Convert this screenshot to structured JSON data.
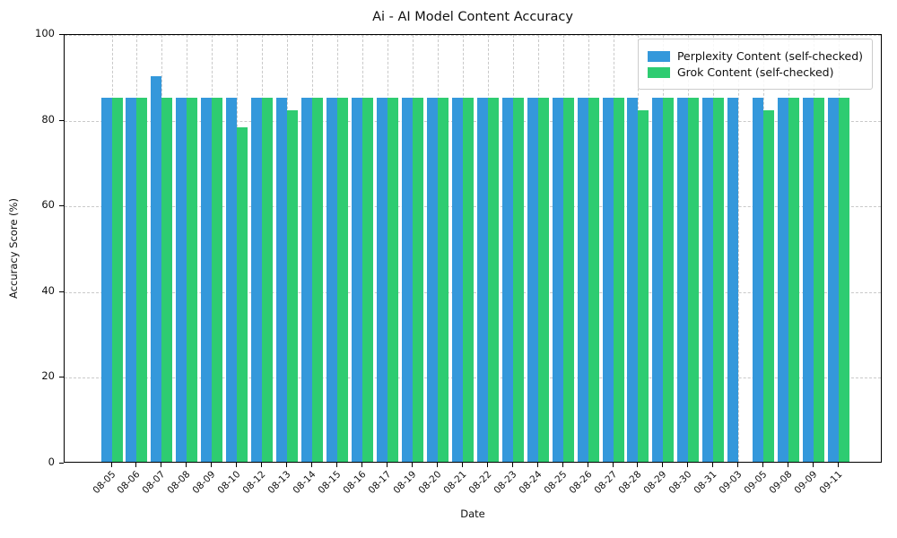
{
  "chart_data": {
    "type": "bar",
    "title": "Ai - AI Model Content Accuracy",
    "xlabel": "Date",
    "ylabel": "Accuracy Score (%)",
    "ylim": [
      0,
      100
    ],
    "yticks": [
      0,
      20,
      40,
      60,
      80,
      100
    ],
    "grid": true,
    "legend_position": "upper right",
    "categories": [
      "08-05",
      "08-06",
      "08-07",
      "08-08",
      "08-09",
      "08-10",
      "08-12",
      "08-13",
      "08-14",
      "08-15",
      "08-16",
      "08-17",
      "08-19",
      "08-20",
      "08-21",
      "08-22",
      "08-23",
      "08-24",
      "08-25",
      "08-26",
      "08-27",
      "08-28",
      "08-29",
      "08-30",
      "08-31",
      "09-03",
      "09-05",
      "09-08",
      "09-09",
      "09-11"
    ],
    "series": [
      {
        "name": "Perplexity Content (self-checked)",
        "color": "#3498db",
        "values": [
          85,
          85,
          90,
          85,
          85,
          85,
          85,
          85,
          85,
          85,
          85,
          85,
          85,
          85,
          85,
          85,
          85,
          85,
          85,
          85,
          85,
          85,
          85,
          85,
          85,
          85,
          85,
          85,
          85,
          85
        ]
      },
      {
        "name": "Grok Content (self-checked)",
        "color": "#2ecc71",
        "values": [
          85,
          85,
          85,
          85,
          85,
          78,
          85,
          82,
          85,
          85,
          85,
          85,
          85,
          85,
          85,
          85,
          85,
          85,
          85,
          85,
          85,
          82,
          85,
          85,
          85,
          0,
          82,
          85,
          85,
          85
        ]
      }
    ]
  }
}
